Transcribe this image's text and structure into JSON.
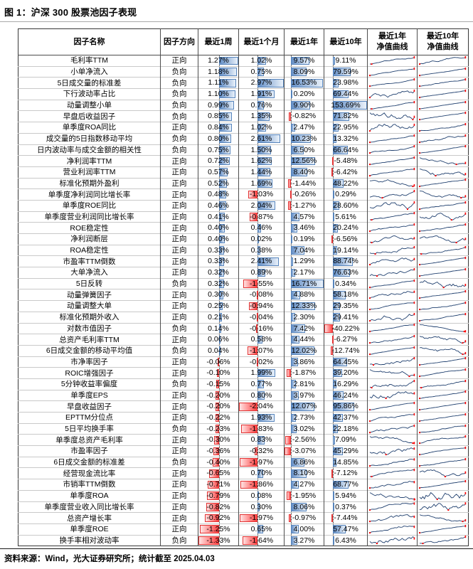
{
  "title": "图 1：沪深 300 股票池因子表现",
  "footer": "资料来源：Wind，光大证券研究所；统计截至 2025.04.03",
  "colors": {
    "bar_pos": "#638ec6",
    "bar_pos_border": "#5684bc",
    "bar_pos_fade": "#e9f1fa",
    "bar_neg": "#ff4040",
    "bar_neg_border": "#e23434",
    "bar_neg_fade": "#ffe3e3",
    "spark": "#1f3f6e",
    "marker": "#ff0000"
  },
  "table": {
    "headers": [
      {
        "l1": "因子名称"
      },
      {
        "l1": "因子方向"
      },
      {
        "l1": "最近1周"
      },
      {
        "l1": "最近1个月"
      },
      {
        "l1": "最近1年"
      },
      {
        "l1": "最近10年"
      },
      {
        "l1": "最近1年",
        "l2": "净值曲线"
      },
      {
        "l1": "最近10年",
        "l2": "净值曲线"
      }
    ],
    "rows": [
      {
        "name": "毛利率TTM",
        "dir": "正向",
        "w1": "1.27%",
        "m1": "1.02%",
        "y1": "9.57%",
        "y10": "9.11%",
        "s1": 101,
        "s10": 501
      },
      {
        "name": "小单净流入",
        "dir": "负向",
        "w1": "1.18%",
        "m1": "0.75%",
        "y1": "8.09%",
        "y10": "79.59%",
        "s1": 102,
        "s10": 502
      },
      {
        "name": "5日成交量的标准差",
        "dir": "负向",
        "w1": "1.11%",
        "m1": "2.97%",
        "y1": "16.53%",
        "y10": "23.98%",
        "s1": 103,
        "s10": 503
      },
      {
        "name": "下行波动率占比",
        "dir": "负向",
        "w1": "1.10%",
        "m1": "1.91%",
        "y1": "0.20%",
        "y10": "69.44%",
        "s1": 104,
        "s10": 504
      },
      {
        "name": "动量调整小单",
        "dir": "负向",
        "w1": "0.99%",
        "m1": "0.76%",
        "y1": "9.90%",
        "y10": "153.69%",
        "s1": 105,
        "s10": 505
      },
      {
        "name": "早盘后收益因子",
        "dir": "负向",
        "w1": "0.85%",
        "m1": "1.35%",
        "y1": "-0.82%",
        "y10": "71.82%",
        "s1": 106,
        "s10": 506
      },
      {
        "name": "单季度ROA同比",
        "dir": "正向",
        "w1": "0.84%",
        "m1": "1.02%",
        "y1": "2.47%",
        "y10": "22.95%",
        "s1": 107,
        "s10": 507
      },
      {
        "name": "成交量的5日指数移动平均",
        "dir": "负向",
        "w1": "0.80%",
        "m1": "2.61%",
        "y1": "10.23%",
        "y10": "13.32%",
        "s1": 108,
        "s10": 508
      },
      {
        "name": "日内波动率与成交金额的相关性",
        "dir": "负向",
        "w1": "0.75%",
        "m1": "1.50%",
        "y1": "6.50%",
        "y10": "66.64%",
        "s1": 109,
        "s10": 509
      },
      {
        "name": "净利润率TTM",
        "dir": "正向",
        "w1": "0.72%",
        "m1": "1.62%",
        "y1": "12.56%",
        "y10": "-5.48%",
        "s1": 110,
        "s10": 510
      },
      {
        "name": "营业利润率TTM",
        "dir": "正向",
        "w1": "0.57%",
        "m1": "1.44%",
        "y1": "8.40%",
        "y10": "-6.42%",
        "s1": 111,
        "s10": 511
      },
      {
        "name": "标准化预期外盈利",
        "dir": "正向",
        "w1": "0.52%",
        "m1": "1.69%",
        "y1": "-1.44%",
        "y10": "48.22%",
        "s1": 112,
        "s10": 512
      },
      {
        "name": "单季度净利润同比增长率",
        "dir": "正向",
        "w1": "0.48%",
        "m1": "-1.03%",
        "y1": "-0.26%",
        "y10": "0.29%",
        "s1": 113,
        "s10": 513
      },
      {
        "name": "单季度ROE同比",
        "dir": "正向",
        "w1": "0.46%",
        "m1": "2.04%",
        "y1": "-1.27%",
        "y10": "28.60%",
        "s1": 114,
        "s10": 514
      },
      {
        "name": "单季度营业利润同比增长率",
        "dir": "正向",
        "w1": "0.41%",
        "m1": "-0.87%",
        "y1": "4.57%",
        "y10": "5.61%",
        "s1": 115,
        "s10": 515
      },
      {
        "name": "ROE稳定性",
        "dir": "正向",
        "w1": "0.40%",
        "m1": "0.46%",
        "y1": "3.46%",
        "y10": "20.24%",
        "s1": 116,
        "s10": 516
      },
      {
        "name": "净利润断层",
        "dir": "正向",
        "w1": "0.40%",
        "m1": "0.02%",
        "y1": "0.19%",
        "y10": "-6.56%",
        "s1": 117,
        "s10": 517
      },
      {
        "name": "ROA稳定性",
        "dir": "正向",
        "w1": "0.33%",
        "m1": "0.38%",
        "y1": "7.04%",
        "y10": "19.14%",
        "s1": 118,
        "s10": 518
      },
      {
        "name": "市盈率TTM倒数",
        "dir": "正向",
        "w1": "0.33%",
        "m1": "2.41%",
        "y1": "1.29%",
        "y10": "88.74%",
        "s1": 119,
        "s10": 519
      },
      {
        "name": "大单净流入",
        "dir": "正向",
        "w1": "0.32%",
        "m1": "0.89%",
        "y1": "2.17%",
        "y10": "76.63%",
        "s1": 120,
        "s10": 520
      },
      {
        "name": "5日反转",
        "dir": "负向",
        "w1": "0.32%",
        "m1": "-1.55%",
        "y1": "16.71%",
        "y10": "0.34%",
        "s1": 121,
        "s10": 521
      },
      {
        "name": "动量弹簧因子",
        "dir": "正向",
        "w1": "0.30%",
        "m1": "-0.08%",
        "y1": "4.88%",
        "y10": "58.18%",
        "s1": 122,
        "s10": 522
      },
      {
        "name": "动量调整大单",
        "dir": "正向",
        "w1": "0.25%",
        "m1": "-0.94%",
        "y1": "12.33%",
        "y10": "29.35%",
        "s1": 123,
        "s10": 523
      },
      {
        "name": "标准化预期外收入",
        "dir": "正向",
        "w1": "0.21%",
        "m1": "-0.04%",
        "y1": "2.30%",
        "y10": "29.41%",
        "s1": 124,
        "s10": 524
      },
      {
        "name": "对数市值因子",
        "dir": "负向",
        "w1": "0.14%",
        "m1": "-0.16%",
        "y1": "7.42%",
        "y10": "-40.22%",
        "s1": 125,
        "s10": 525
      },
      {
        "name": "总资产毛利率TTM",
        "dir": "正向",
        "w1": "0.06%",
        "m1": "0.58%",
        "y1": "4.44%",
        "y10": "-6.27%",
        "s1": 126,
        "s10": 526
      },
      {
        "name": "6日成交金额的移动平均值",
        "dir": "负向",
        "w1": "0.04%",
        "m1": "-1.07%",
        "y1": "12.02%",
        "y10": "-12.74%",
        "s1": 127,
        "s10": 527
      },
      {
        "name": "市净率因子",
        "dir": "正向",
        "w1": "-0.06%",
        "m1": "-0.02%",
        "y1": "3.86%",
        "y10": "64.45%",
        "s1": 128,
        "s10": 528
      },
      {
        "name": "ROIC增强因子",
        "dir": "正向",
        "w1": "-0.10%",
        "m1": "1.99%",
        "y1": "-1.87%",
        "y10": "39.20%",
        "s1": 129,
        "s10": 529
      },
      {
        "name": "5分钟收益率偏度",
        "dir": "负向",
        "w1": "-0.15%",
        "m1": "0.77%",
        "y1": "2.81%",
        "y10": "16.29%",
        "s1": 130,
        "s10": 530
      },
      {
        "name": "单季度EPS",
        "dir": "正向",
        "w1": "-0.20%",
        "m1": "0.80%",
        "y1": "3.97%",
        "y10": "46.24%",
        "s1": 131,
        "s10": 531
      },
      {
        "name": "早盘收益因子",
        "dir": "正向",
        "w1": "-0.20%",
        "m1": "-2.04%",
        "y1": "12.07%",
        "y10": "95.86%",
        "s1": 132,
        "s10": 532
      },
      {
        "name": "EPTTM分位点",
        "dir": "正向",
        "w1": "-0.22%",
        "m1": "1.93%",
        "y1": "2.73%",
        "y10": "42.37%",
        "s1": 133,
        "s10": 533
      },
      {
        "name": "5日平均换手率",
        "dir": "负向",
        "w1": "-0.23%",
        "m1": "-1.83%",
        "y1": "3.02%",
        "y10": "22.18%",
        "s1": 134,
        "s10": 534
      },
      {
        "name": "单季度总资产毛利率",
        "dir": "正向",
        "w1": "-0.30%",
        "m1": "0.83%",
        "y1": "-2.56%",
        "y10": "7.09%",
        "s1": 135,
        "s10": 535
      },
      {
        "name": "市盈率因子",
        "dir": "正向",
        "w1": "-0.36%",
        "m1": "-0.32%",
        "y1": "-3.07%",
        "y10": "45.29%",
        "s1": 136,
        "s10": 536
      },
      {
        "name": "6日成交金额的标准差",
        "dir": "负向",
        "w1": "-0.40%",
        "m1": "-1.97%",
        "y1": "6.86%",
        "y10": "14.85%",
        "s1": 137,
        "s10": 537
      },
      {
        "name": "经营现金流比率",
        "dir": "正向",
        "w1": "-0.65%",
        "m1": "0.70%",
        "y1": "8.10%",
        "y10": "-7.12%",
        "s1": 138,
        "s10": 538
      },
      {
        "name": "市销率TTM倒数",
        "dir": "正向",
        "w1": "-0.71%",
        "m1": "-1.86%",
        "y1": "4.27%",
        "y10": "68.77%",
        "s1": 139,
        "s10": 539
      },
      {
        "name": "单季度ROA",
        "dir": "正向",
        "w1": "-0.79%",
        "m1": "0.08%",
        "y1": "-1.95%",
        "y10": "5.94%",
        "s1": 140,
        "s10": 540
      },
      {
        "name": "单季度营业收入同比增长率",
        "dir": "正向",
        "w1": "-0.82%",
        "m1": "0.30%",
        "y1": "8.06%",
        "y10": "0.37%",
        "s1": 141,
        "s10": 541
      },
      {
        "name": "总资产增长率",
        "dir": "正向",
        "w1": "-0.92%",
        "m1": "-1.97%",
        "y1": "-0.97%",
        "y10": "-7.44%",
        "s1": 142,
        "s10": 542
      },
      {
        "name": "单季度ROE",
        "dir": "正向",
        "w1": "-1.25%",
        "m1": "0.65%",
        "y1": "4.00%",
        "y10": "57.47%",
        "s1": 143,
        "s10": 543
      },
      {
        "name": "换手率相对波动率",
        "dir": "负向",
        "w1": "-1.33%",
        "m1": "-1.64%",
        "y1": "3.27%",
        "y10": "6.43%",
        "s1": 144,
        "s10": 544
      }
    ]
  }
}
